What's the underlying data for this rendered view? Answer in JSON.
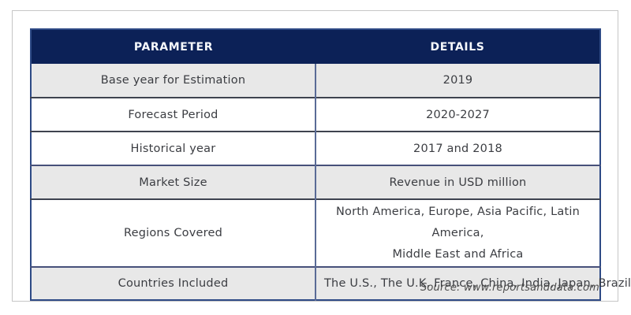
{
  "table": {
    "headers": {
      "parameter": "PARAMETER",
      "details": "DETAILS"
    },
    "rows": [
      {
        "parameter": "Base year for Estimation",
        "details": "2019"
      },
      {
        "parameter": "Forecast Period",
        "details": "2020-2027"
      },
      {
        "parameter": "Historical year",
        "details": "2017 and 2018"
      },
      {
        "parameter": "Market Size",
        "details": "Revenue in USD million"
      },
      {
        "parameter": "Regions Covered",
        "details": "North America, Europe, Asia Pacific, Latin America,\nMiddle East and Africa"
      },
      {
        "parameter": "Countries Included",
        "details": "The U.S., The  U.K, France, China, India, Japan, Brazil"
      }
    ]
  },
  "footer": {
    "source": "Source: www.reportsanddata.com"
  },
  "colors": {
    "header_bg": "#0c2157",
    "header_text": "#f6f8fc",
    "shaded_row_bg": "#e8e8e8",
    "plain_row_bg": "#ffffff",
    "row_border": "#3e434f",
    "column_divider": "#5a6b96",
    "table_outline": "#2e4a85",
    "frame_border": "#c6c6c6",
    "body_text": "#3b3d42",
    "source_text": "#4d4d4d"
  }
}
